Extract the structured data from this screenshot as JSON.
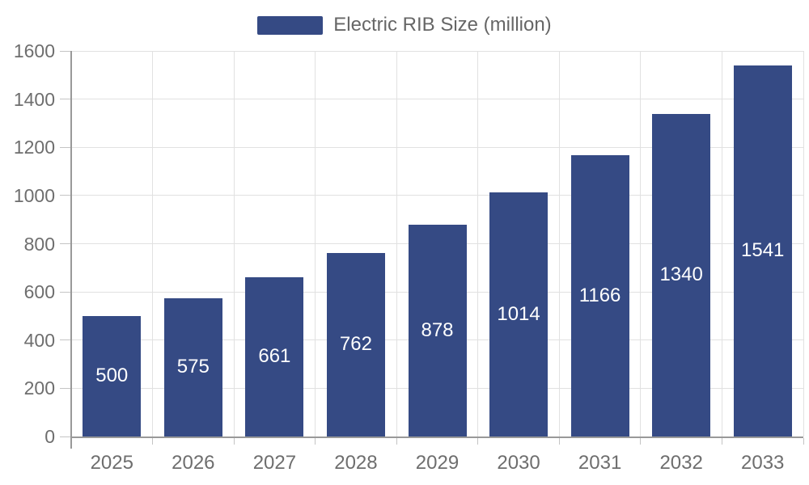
{
  "legend": {
    "label": "Electric RIB Size (million)"
  },
  "chart_data": {
    "type": "bar",
    "title": "Electric RIB Size (million)",
    "categories": [
      "2025",
      "2026",
      "2027",
      "2028",
      "2029",
      "2030",
      "2031",
      "2032",
      "2033"
    ],
    "series": [
      {
        "name": "Electric RIB Size (million)",
        "values": [
          500,
          575,
          661,
          762,
          878,
          1014,
          1166,
          1340,
          1541
        ]
      }
    ],
    "values": [
      500,
      575,
      661,
      762,
      878,
      1014,
      1166,
      1340,
      1541
    ],
    "data_labels": [
      "500",
      "575",
      "661",
      "762",
      "878",
      "1014",
      "1166",
      "1340",
      "1541"
    ],
    "xlabel": "",
    "ylabel": "",
    "ylim": [
      0,
      1600
    ],
    "yticks": [
      0,
      200,
      400,
      600,
      800,
      1000,
      1200,
      1400,
      1600
    ],
    "grid": true,
    "legend_position": "top-center",
    "data_label_position": "inside-center",
    "data_label_color": "#ffffff"
  },
  "colors": {
    "bar": "#354a84",
    "grid": "#e1e1e1",
    "axis": "#999999",
    "tick": "#c4c4c4",
    "text": "#6e6e6e",
    "legend_text": "#666666"
  }
}
